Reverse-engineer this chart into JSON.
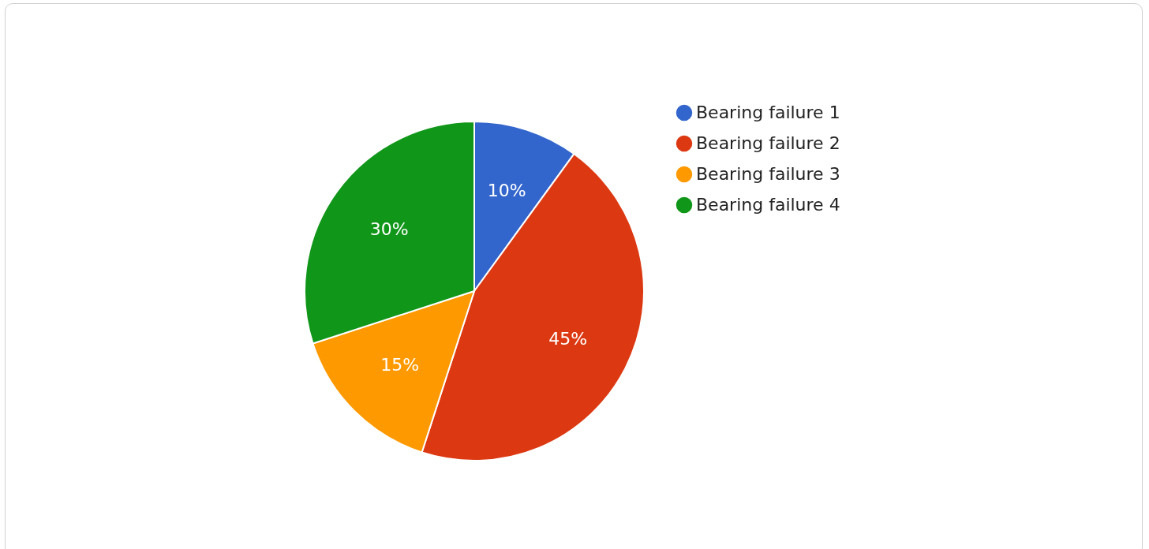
{
  "chart_data": {
    "type": "pie",
    "categories": [
      "Bearing failure 1",
      "Bearing failure 2",
      "Bearing failure 3",
      "Bearing failure 4"
    ],
    "values": [
      10,
      45,
      15,
      30
    ],
    "value_labels": [
      "10%",
      "45%",
      "15%",
      "30%"
    ],
    "colors": [
      "#3366cc",
      "#dc3912",
      "#ff9900",
      "#109618"
    ],
    "legend": "top right"
  }
}
